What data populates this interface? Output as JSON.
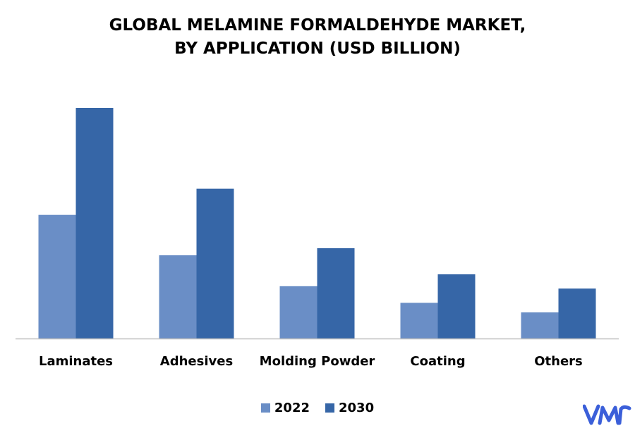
{
  "chart_data": {
    "type": "bar",
    "title_lines": [
      "GLOBAL MELAMINE FORMALDEHYDE MARKET,",
      "BY APPLICATION (USD BILLION)"
    ],
    "categories": [
      "Laminates",
      "Adhesives",
      "Molding Powder",
      "Coating",
      "Others"
    ],
    "series": [
      {
        "name": "2022",
        "color": "#6a8ec6",
        "values": [
          5.2,
          3.5,
          2.2,
          1.5,
          1.1
        ]
      },
      {
        "name": "2030",
        "color": "#3666a7",
        "values": [
          9.7,
          6.3,
          3.8,
          2.7,
          2.1
        ]
      }
    ],
    "ylim": [
      0,
      11
    ],
    "grid": false,
    "legend_position": "bottom",
    "axis_color": "#c0c0c0"
  },
  "brand": {
    "logo_icon": "vmr-logo-icon",
    "logo_color": "#3b5fd9"
  }
}
